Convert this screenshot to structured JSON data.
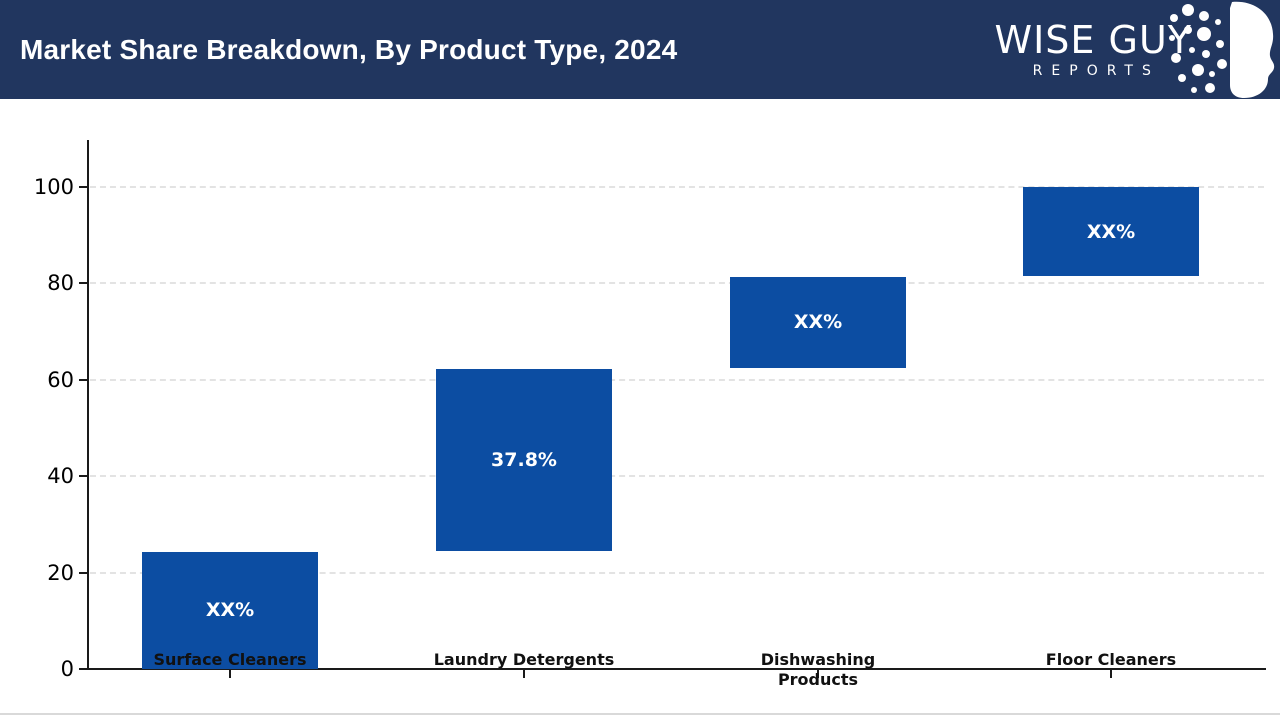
{
  "header": {
    "title": "Market Share Breakdown, By Product Type, 2024",
    "background_color": "#21365f",
    "logo": {
      "line1": "WISE GUY",
      "line2": "REPORTS"
    }
  },
  "watermark": {
    "line1": "WISE GUY",
    "line2": "R E P O R T S"
  },
  "chart_data": {
    "type": "bar",
    "variant": "floating-waterfall",
    "title": "Market Share Breakdown, By Product Type, 2024",
    "xlabel": "",
    "ylabel": "",
    "ylim": [
      0,
      100
    ],
    "yticks": [
      0,
      20,
      40,
      60,
      80,
      100
    ],
    "grid": "horizontal dashed",
    "legend": "none",
    "bar_color": "#0c4da2",
    "bar_label_color": "#ffffff",
    "categories": [
      "Surface Cleaners",
      "Laundry Detergents",
      "Dishwashing\nProducts",
      "Floor Cleaners"
    ],
    "bars": [
      {
        "category": "Surface Cleaners",
        "start": 0,
        "end": 24.3,
        "label": "XX%"
      },
      {
        "category": "Laundry Detergents",
        "start": 24.5,
        "end": 62.3,
        "label": "37.8%"
      },
      {
        "category": "Dishwashing Products",
        "start": 62.5,
        "end": 81.3,
        "label": "XX%"
      },
      {
        "category": "Floor Cleaners",
        "start": 81.5,
        "end": 100,
        "label": "XX%"
      }
    ]
  }
}
